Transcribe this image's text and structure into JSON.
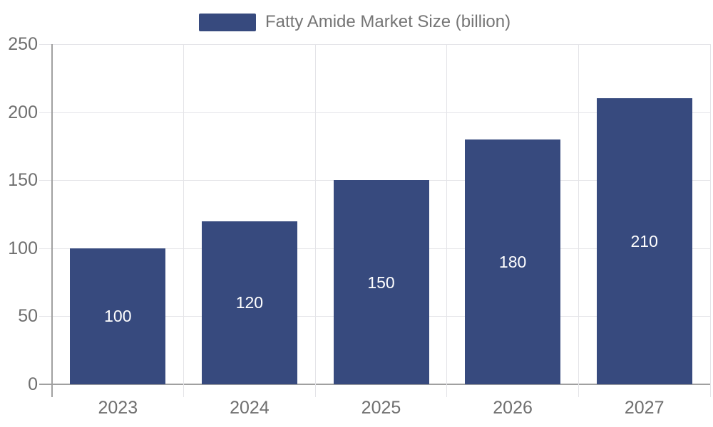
{
  "chart_data": {
    "type": "bar",
    "title": "",
    "categories": [
      "2023",
      "2024",
      "2025",
      "2026",
      "2027"
    ],
    "series": [
      {
        "name": "Fatty Amide Market Size (billion)",
        "values": [
          100,
          120,
          150,
          180,
          210
        ]
      }
    ],
    "bar_value_labels": [
      "100",
      "120",
      "150",
      "180",
      "210"
    ],
    "xlabel": "",
    "ylabel": "",
    "ylim": [
      0,
      250
    ],
    "yticks": [
      0,
      50,
      100,
      150,
      200,
      250
    ],
    "ytick_labels": [
      "0",
      "50",
      "100",
      "150",
      "200",
      "250"
    ],
    "grid": true,
    "legend_position": "top-center"
  },
  "colors": {
    "bar_fill": "#374A7E",
    "legend_swatch": "#374A7E",
    "gridline": "#e4e4e8",
    "axis_line": "#a0a0a0",
    "tick_label_text": "#6f6f6f",
    "legend_text": "#757575",
    "bar_value_text": "#ffffff",
    "background": "#ffffff"
  }
}
